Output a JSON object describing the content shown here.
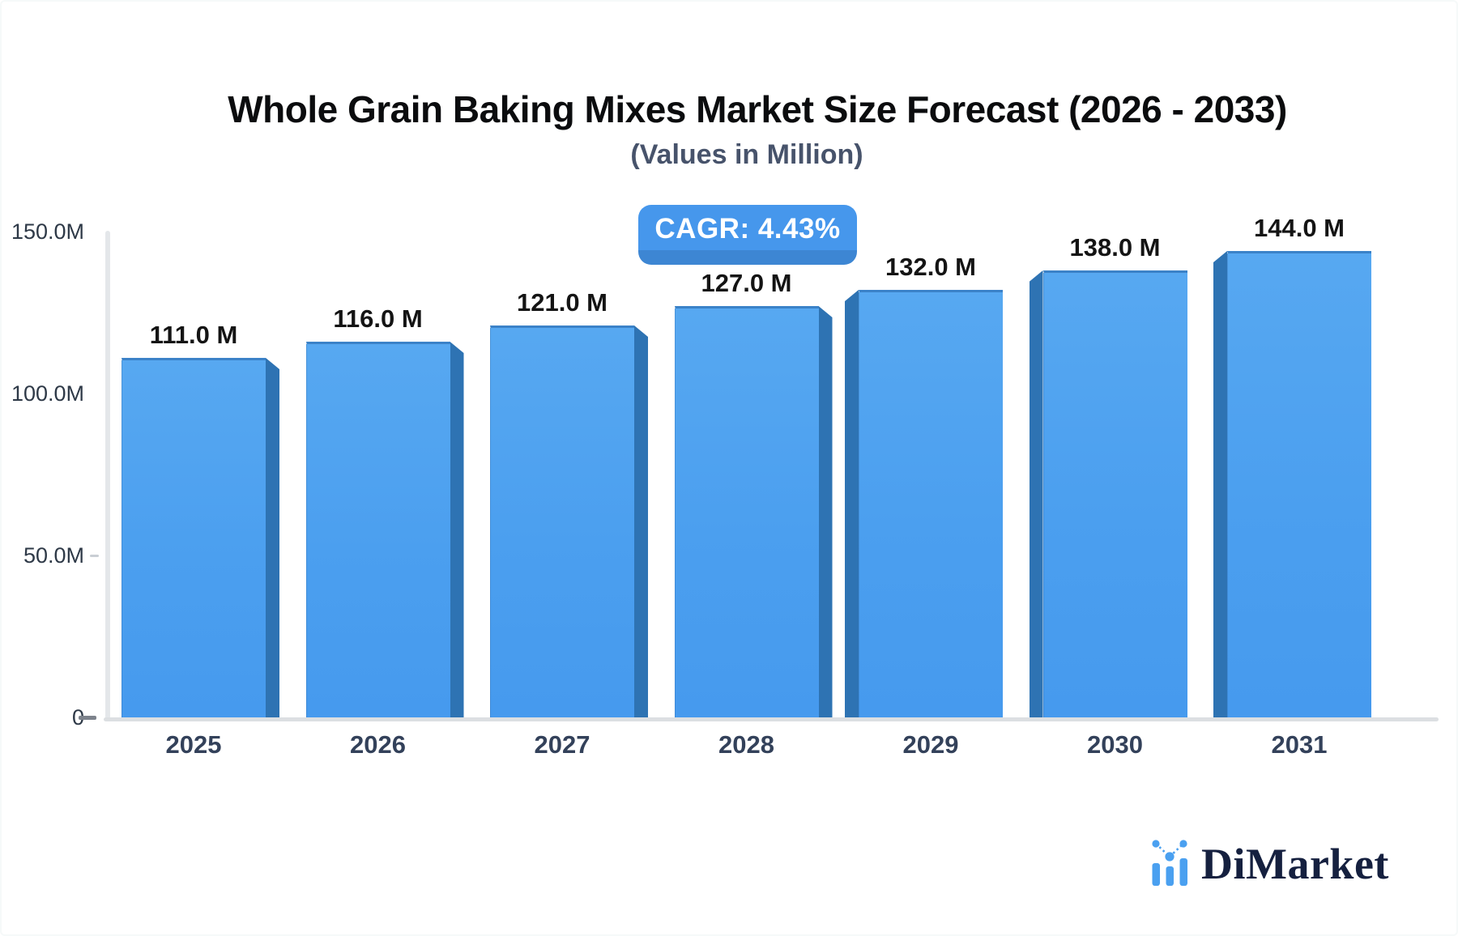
{
  "title": "Whole Grain Baking Mixes Market Size Forecast (2026 - 2033)",
  "subtitle": "(Values in Million)",
  "badge": {
    "label": "CAGR: 4.43%"
  },
  "colors": {
    "bar_face": "#4b9fef",
    "bar_side": "#2e73b3",
    "badge_blue": "#4697ec",
    "badge_shadow_strip": "#3d86d3",
    "axis_line": "#e4e7ea",
    "baseline": "#dcdfe2",
    "value_label_text": "#141414",
    "axis_text": "#2e3947",
    "category_text": "#33415a",
    "logo_navy": "#15203f",
    "logo_blue": "#4aa0f0"
  },
  "y_axis": {
    "ticks": [
      {
        "label": "150.0M",
        "value": 150,
        "dash": "none"
      },
      {
        "label": "100.0M",
        "value": 100,
        "dash": "none"
      },
      {
        "label": "50.0M",
        "value": 50,
        "dash": "light"
      },
      {
        "label": "0",
        "value": 0,
        "dash": "dark"
      }
    ]
  },
  "chart_data": {
    "type": "bar",
    "title": "Whole Grain Baking Mixes Market Size Forecast (2026 - 2033)",
    "subtitle": "(Values in Million)",
    "categories": [
      "2025",
      "2026",
      "2027",
      "2028",
      "2029",
      "2030",
      "2031"
    ],
    "values": [
      111,
      116,
      121,
      127,
      132,
      138,
      144
    ],
    "value_labels": [
      "111.0 M",
      "116.0 M",
      "121.0 M",
      "127.0 M",
      "132.0 M",
      "138.0 M",
      "144.0 M"
    ],
    "unit": "Million",
    "xlabel": "",
    "ylabel": "",
    "ylim": [
      0,
      150
    ],
    "y_tick_labels": [
      "0",
      "50.0M",
      "100.0M",
      "150.0M"
    ],
    "grid": false,
    "legend": false,
    "annotations": [
      "CAGR: 4.43%"
    ],
    "style": "3d-extruded-bars"
  },
  "logo": {
    "text": "DiMarket",
    "icon": "bar-line-chart-icon"
  }
}
